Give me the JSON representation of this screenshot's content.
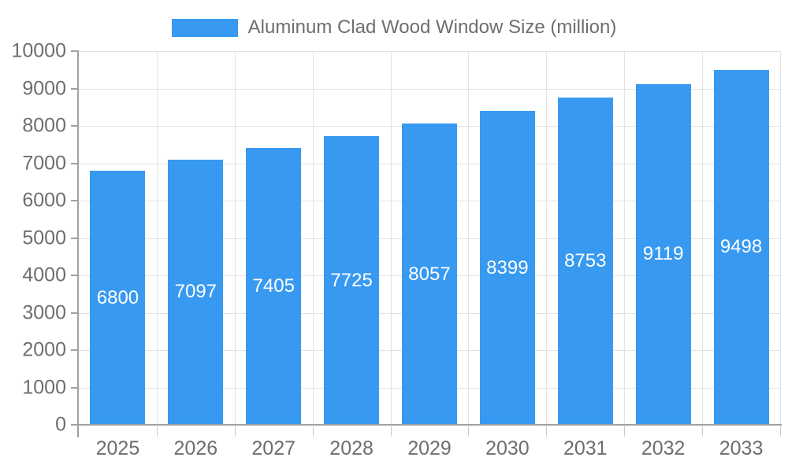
{
  "legend": {
    "label": "Aluminum Clad Wood Window Size (million)"
  },
  "colors": {
    "bar": "#3899F0",
    "grid": "#E3E3E3",
    "axis": "#A0A0A0",
    "tick": "#CCCCCC",
    "text": "#6E6E6E",
    "value_label": "#FFFFFF",
    "background": "#FFFFFF"
  },
  "chart_data": {
    "type": "bar",
    "title": "Aluminum Clad Wood Window Size (million)",
    "categories": [
      "2025",
      "2026",
      "2027",
      "2028",
      "2029",
      "2030",
      "2031",
      "2032",
      "2033"
    ],
    "values": [
      6800,
      7097,
      7405,
      7725,
      8057,
      8399,
      8753,
      9119,
      9498
    ],
    "series": [
      {
        "name": "Aluminum Clad Wood Window Size (million)",
        "values": [
          6800,
          7097,
          7405,
          7725,
          8057,
          8399,
          8753,
          9119,
          9498
        ]
      }
    ],
    "xlabel": "",
    "ylabel": "",
    "ylim": [
      0,
      10000
    ],
    "ytick_step": 1000,
    "yticks": [
      0,
      1000,
      2000,
      3000,
      4000,
      5000,
      6000,
      7000,
      8000,
      9000,
      10000
    ],
    "grid": true,
    "legend_position": "top-center",
    "bar_value_labels": "inside-center"
  }
}
